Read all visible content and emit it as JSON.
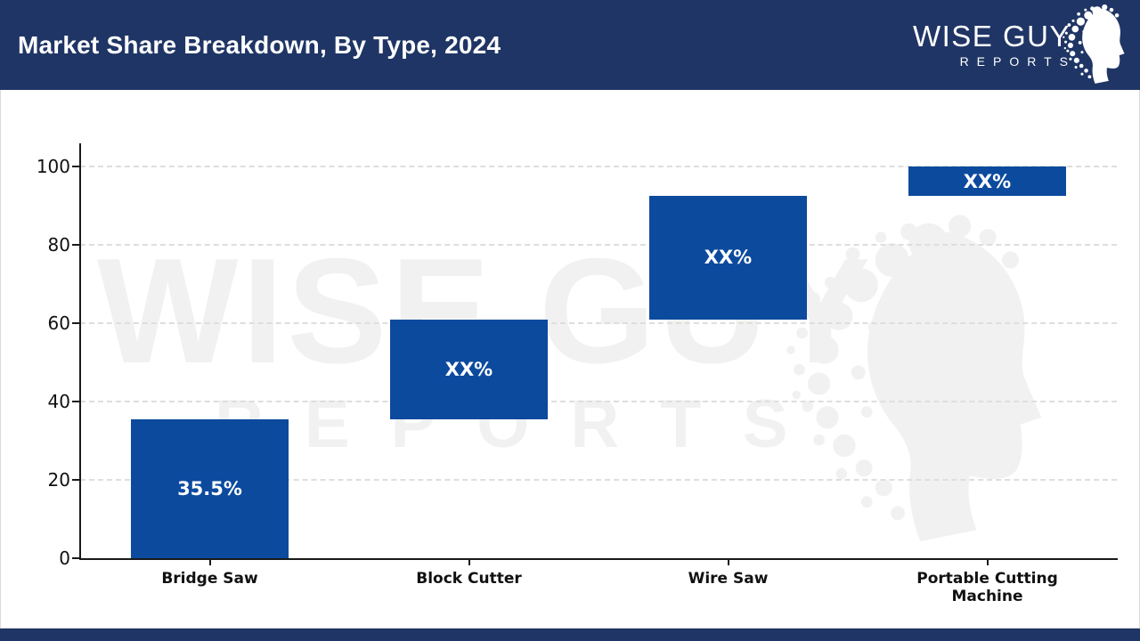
{
  "header": {
    "title": "Market Share Breakdown, By Type, 2024",
    "logo": {
      "line1": "WISE GUY",
      "line2": "REPORTS"
    }
  },
  "watermark": {
    "line1": "WISE GUY",
    "line2": "REPORTS"
  },
  "colors": {
    "header_bg": "#1f3565",
    "bar": "#0c4a9e",
    "bar_label": "#ffffff",
    "grid": "#dedede",
    "axis": "#1a1a1a",
    "watermark": "#f1f1f1"
  },
  "chart_data": {
    "type": "bar",
    "subtype": "waterfall",
    "title": "Market Share Breakdown, By Type, 2024",
    "xlabel": "",
    "ylabel": "",
    "categories": [
      "Bridge Saw",
      "Block Cutter",
      "Wire Saw",
      "Portable Cutting Machine"
    ],
    "segments": [
      {
        "start": 0,
        "end": 35.5,
        "label": "35.5%"
      },
      {
        "start": 35.5,
        "end": 61,
        "label": "XX%"
      },
      {
        "start": 61,
        "end": 92.5,
        "label": "XX%"
      },
      {
        "start": 92.5,
        "end": 100,
        "label": "XX%"
      }
    ],
    "values": [
      35.5,
      25.5,
      31.5,
      7.5
    ],
    "yticks": [
      0,
      20,
      40,
      60,
      80,
      100
    ],
    "ylim": [
      0,
      105
    ],
    "grid": "horizontal-dashed",
    "legend": "none"
  }
}
